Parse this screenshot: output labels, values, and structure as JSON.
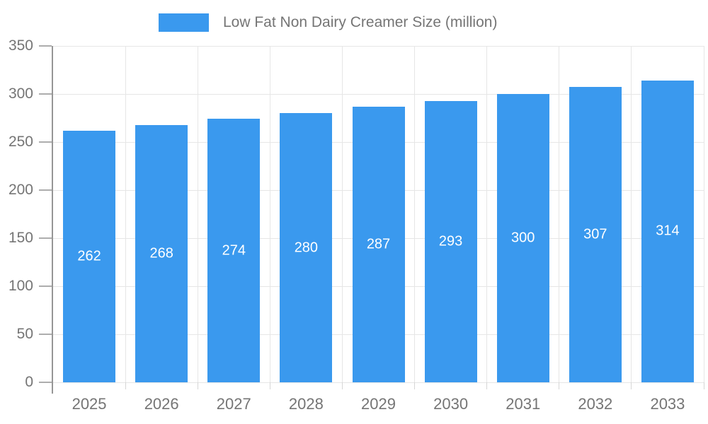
{
  "legend": {
    "label": "Low Fat Non Dairy Creamer Size (million)"
  },
  "chart_data": {
    "type": "bar",
    "title": "Low Fat Non Dairy Creamer Size (million)",
    "categories": [
      "2025",
      "2026",
      "2027",
      "2028",
      "2029",
      "2030",
      "2031",
      "2032",
      "2033"
    ],
    "values": [
      262,
      268,
      274,
      280,
      287,
      293,
      300,
      307,
      314
    ],
    "xlabel": "",
    "ylabel": "",
    "ylim": [
      0,
      350
    ],
    "yticks": [
      0,
      50,
      100,
      150,
      200,
      250,
      300,
      350
    ],
    "grid": true,
    "legend_position": "top-center",
    "value_label_position": "inside-center",
    "colors": {
      "bar": "#3A99EE",
      "value_label": "#FFFFFF",
      "axis_text": "#757575",
      "gridline": "#E6E6E6",
      "axis_line": "#969696",
      "tick": "#ADADAD",
      "x_tick": "#D6D6D6",
      "background": "#FFFFFF"
    }
  }
}
